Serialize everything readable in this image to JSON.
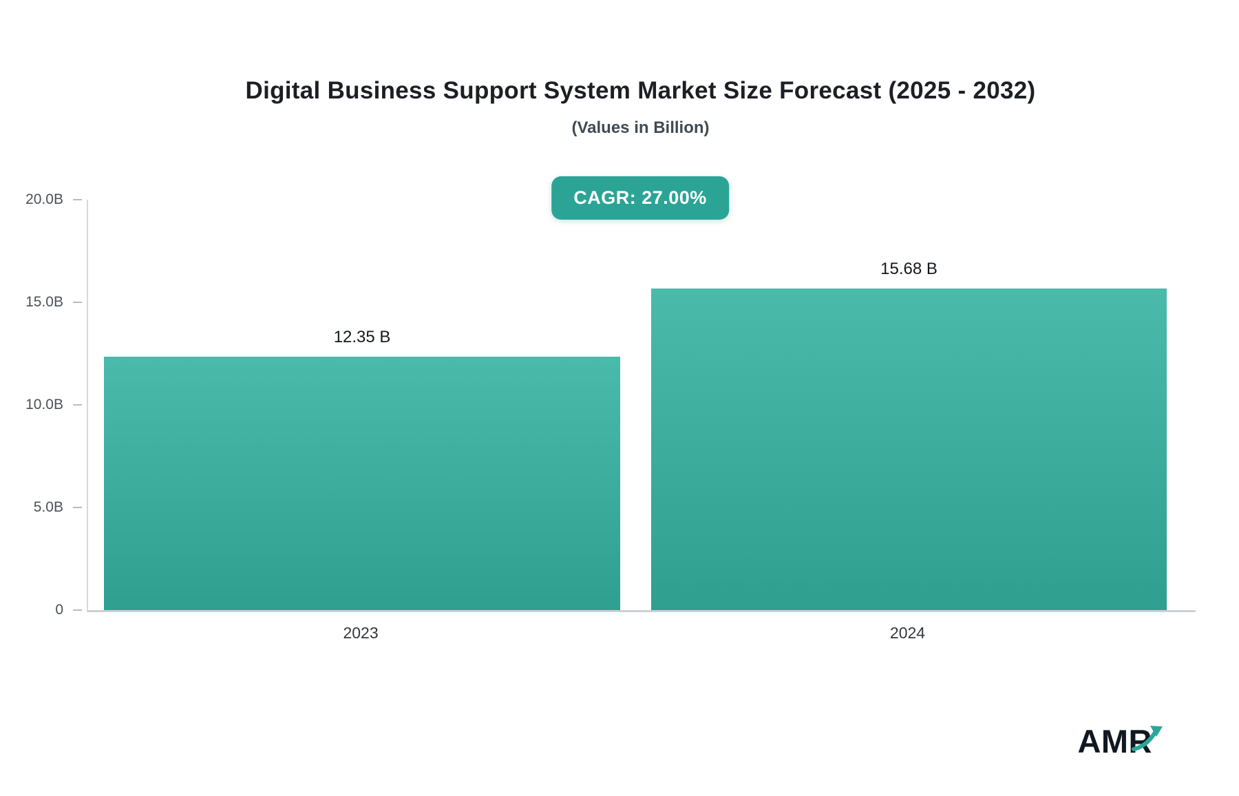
{
  "page": {
    "background": "#ffffff"
  },
  "badge": {
    "label": "CAGR: 27.00%",
    "color": "#2ba496"
  },
  "logo": {
    "text": "AMR",
    "arrow_color": "#2aa79a"
  },
  "chart_data": {
    "type": "bar",
    "title": "Digital Business Support System Market Size Forecast (2025 - 2032)",
    "subtitle": "(Values in Billion)",
    "categories": [
      "2023",
      "2024"
    ],
    "values": [
      12.35,
      15.68
    ],
    "value_labels": [
      "12.35 B",
      "15.68 B"
    ],
    "xlabel": "",
    "ylabel": "",
    "ylim": [
      0,
      20
    ],
    "yticks": [
      {
        "value": 0,
        "label": "0"
      },
      {
        "value": 5,
        "label": "5.0B"
      },
      {
        "value": 10,
        "label": "10.0B"
      },
      {
        "value": 15,
        "label": "15.0B"
      },
      {
        "value": 20,
        "label": "20.0B"
      }
    ],
    "grid": false,
    "legend": false,
    "bar_color_top": "#4abaab",
    "bar_color_bottom": "#2f9f90",
    "axis_color": "#ccd0d4"
  }
}
